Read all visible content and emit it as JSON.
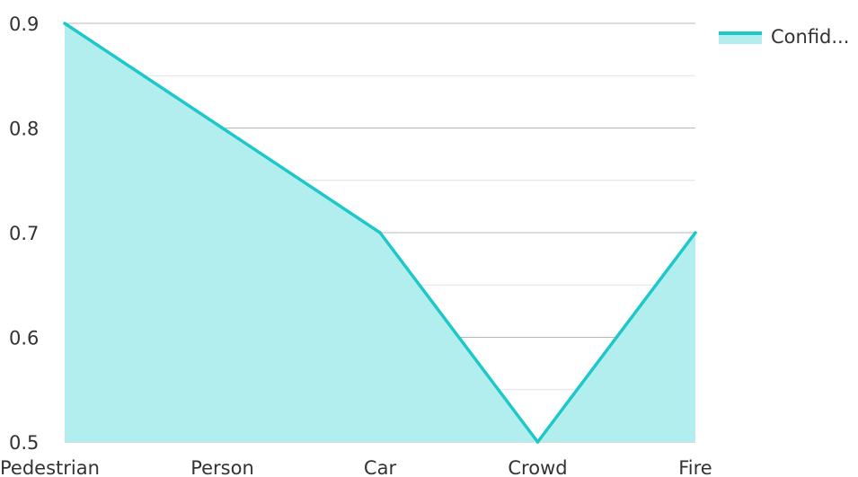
{
  "chart_data": {
    "type": "area",
    "categories": [
      "Pedestrian",
      "Person",
      "Car",
      "Crowd",
      "Fire"
    ],
    "series": [
      {
        "name": "Confid...",
        "values": [
          0.9,
          0.8,
          0.7,
          0.5,
          0.7
        ]
      }
    ],
    "ylim": [
      0.5,
      0.9
    ],
    "yticks": [
      "0.5",
      "0.6",
      "0.7",
      "0.8",
      "0.9"
    ],
    "grid": true,
    "legend_position": "top-right",
    "colors": {
      "line": "#1fc8c8",
      "fill": "#b2eeee",
      "grid_major": "#b8b8b8",
      "grid_minor": "#e2e2e2",
      "text": "#333333"
    }
  }
}
